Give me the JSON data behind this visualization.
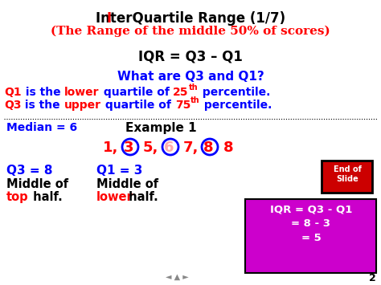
{
  "bg_color": "#ffffff",
  "title1": "InterQuartile Range (1/7)",
  "title2": "(The Range of the middle 50% of scores)",
  "iqr_formula": "IQR = Q3 – Q1",
  "what_are": "What are Q3 and Q1?",
  "median_label": "Median = 6",
  "example_label": "Example 1",
  "q3_label": "Q3 = 8",
  "q1_label": "Q1 = 3",
  "iqr_box_lines": [
    "IQR = Q3 - Q1",
    "= 8 - 3",
    "= 5"
  ],
  "end_slide": [
    "End of",
    "Slide"
  ],
  "slide_num": "2",
  "iqr_box_color": "#cc00cc",
  "end_box_color": "#cc0000"
}
